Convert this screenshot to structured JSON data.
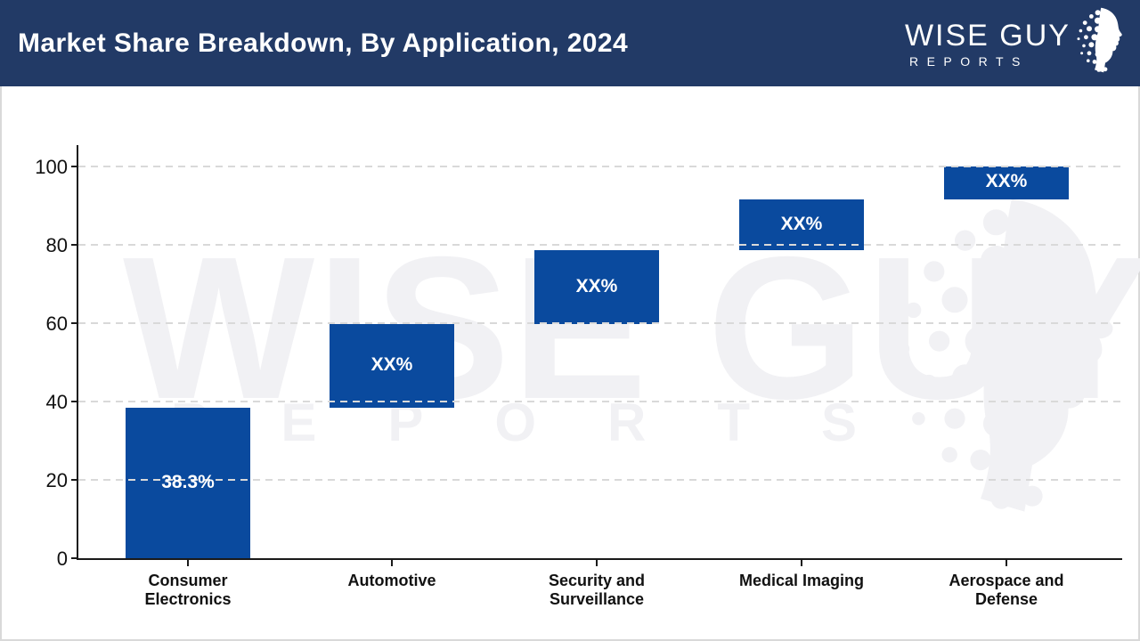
{
  "header": {
    "title": "Market Share Breakdown, By Application, 2024",
    "logo": {
      "wordmark": "WISE GUY",
      "subtext": "REPORTS"
    },
    "background_color": "#223a66"
  },
  "watermark": {
    "line1": "WISE GUY",
    "line2": "REPORTS"
  },
  "chart_data": {
    "type": "bar",
    "subtype": "waterfall",
    "title": "Market Share Breakdown, By Application, 2024",
    "xlabel": "",
    "ylabel": "",
    "categories": [
      "Consumer Electronics",
      "Automotive",
      "Security and Surveillance",
      "Medical Imaging",
      "Aerospace and Defense"
    ],
    "category_lines": [
      [
        "Consumer",
        "Electronics"
      ],
      [
        "Automotive"
      ],
      [
        "Security and",
        "Surveillance"
      ],
      [
        "Medical Imaging"
      ],
      [
        "Aerospace and",
        "Defense"
      ]
    ],
    "segments": [
      {
        "category": "Consumer Electronics",
        "start": 0,
        "end": 38.3,
        "value": 38.3,
        "display_label": "38.3%"
      },
      {
        "category": "Automotive",
        "start": 38.3,
        "end": 59.8,
        "value": 21.5,
        "display_label": "XX%"
      },
      {
        "category": "Security and Surveillance",
        "start": 59.8,
        "end": 78.6,
        "value": 18.8,
        "display_label": "XX%"
      },
      {
        "category": "Medical Imaging",
        "start": 78.6,
        "end": 91.6,
        "value": 13.0,
        "display_label": "XX%"
      },
      {
        "category": "Aerospace and Defense",
        "start": 91.6,
        "end": 100,
        "value": 8.4,
        "display_label": "XX%"
      }
    ],
    "yticks": [
      0,
      20,
      40,
      60,
      80,
      100
    ],
    "ylim": [
      0,
      105.5
    ],
    "grid": true,
    "grid_style": "dashed",
    "legend": false,
    "bar_color": "#0a4a9e",
    "bar_label_color": "#ffffff",
    "axis_color": "#1a1a1a",
    "grid_color": "#d9d9d9",
    "watermark_color": "#f1f1f4"
  }
}
